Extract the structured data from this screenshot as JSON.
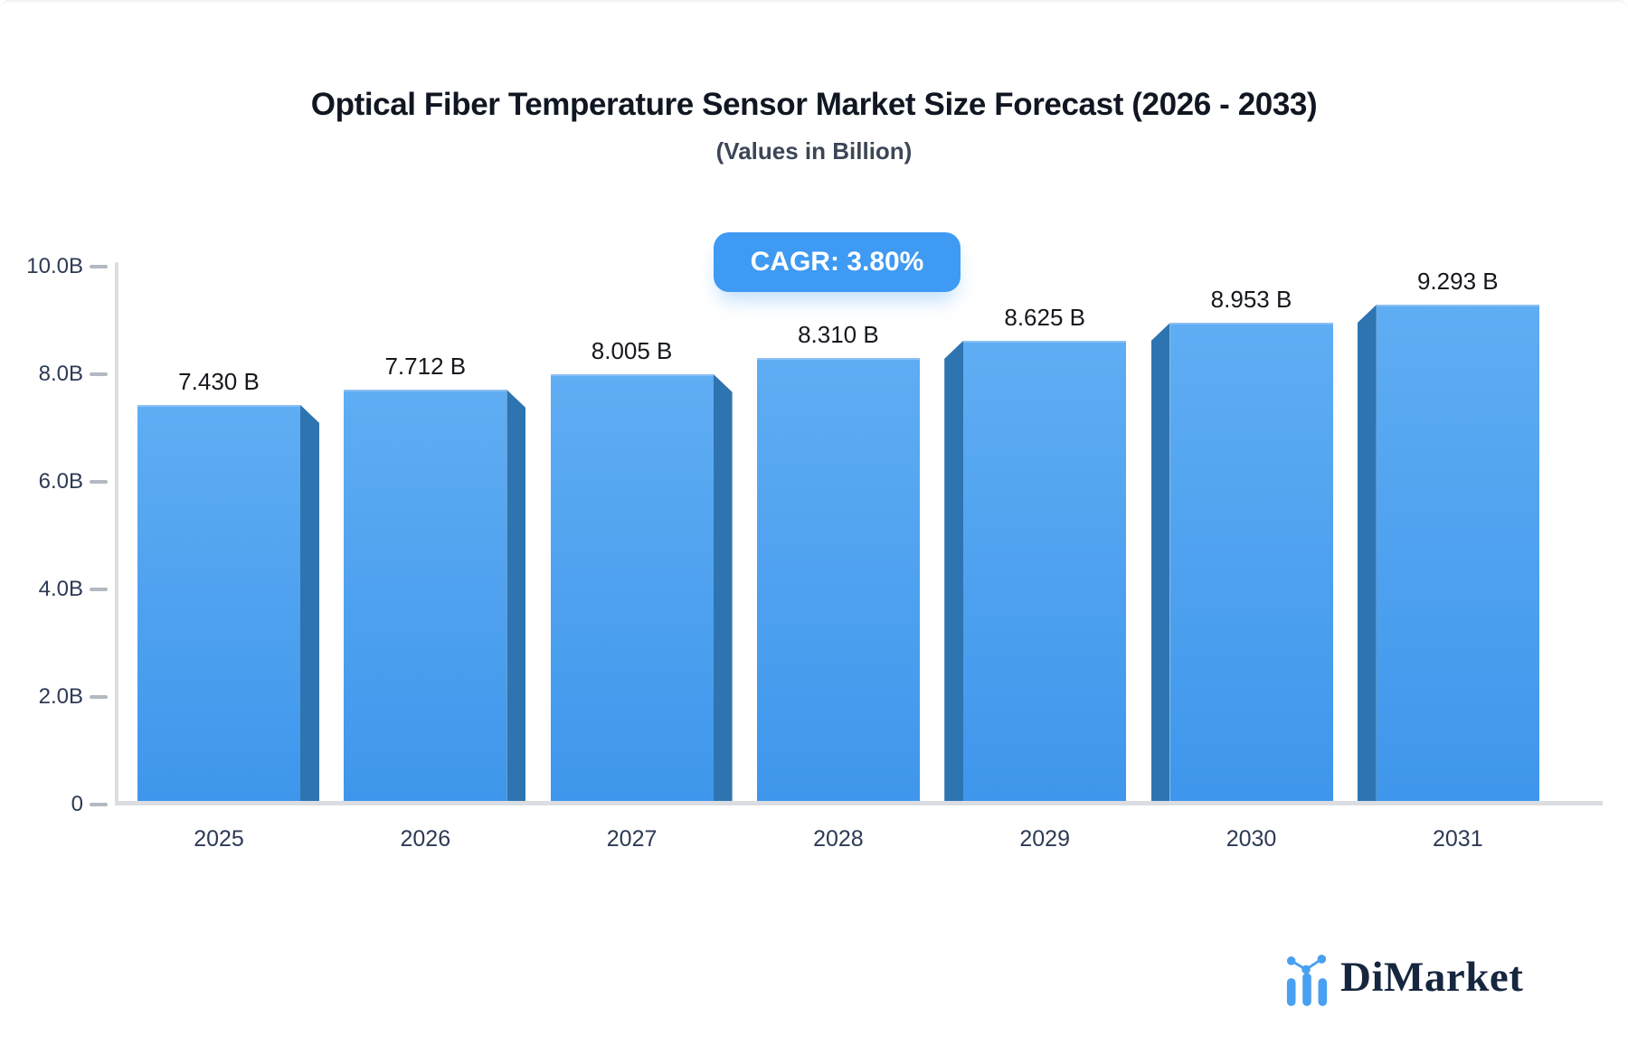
{
  "chart_data": {
    "type": "bar",
    "title": "Optical Fiber Temperature Sensor Market Size Forecast (2026 - 2033)",
    "subtitle": "(Values in Billion)",
    "annotations": {
      "cagr_label": "CAGR: 3.80%"
    },
    "categories": [
      "2025",
      "2026",
      "2027",
      "2028",
      "2029",
      "2030",
      "2031"
    ],
    "values": [
      7.43,
      7.712,
      8.005,
      8.31,
      8.625,
      8.953,
      9.293
    ],
    "value_labels": [
      "7.430 B",
      "7.712 B",
      "8.005 B",
      "8.310 B",
      "8.625 B",
      "8.953 B",
      "9.293 B"
    ],
    "ylim": [
      0,
      10
    ],
    "yticks": [
      {
        "label": "10.0B",
        "value": 10
      },
      {
        "label": "8.0B",
        "value": 8
      },
      {
        "label": "6.0B",
        "value": 6
      },
      {
        "label": "4.0B",
        "value": 4
      },
      {
        "label": "2.0B",
        "value": 2
      },
      {
        "label": "0",
        "value": 0
      }
    ],
    "grid": false,
    "legend": false
  },
  "logo": {
    "text": "DiMarket",
    "icon": "bar-chart-trend-icon"
  },
  "colors": {
    "badge_bg": "#3e9af2",
    "bar_face_top": "#5fadf3",
    "bar_face_bottom": "#3e96ec",
    "bar_side": "#2e74b0",
    "axis_line": "#dadde2",
    "tick_text": "#2d3a54",
    "title_text": "#101722",
    "logo_icon": "#4aa0f0",
    "logo_text": "#17263f"
  }
}
